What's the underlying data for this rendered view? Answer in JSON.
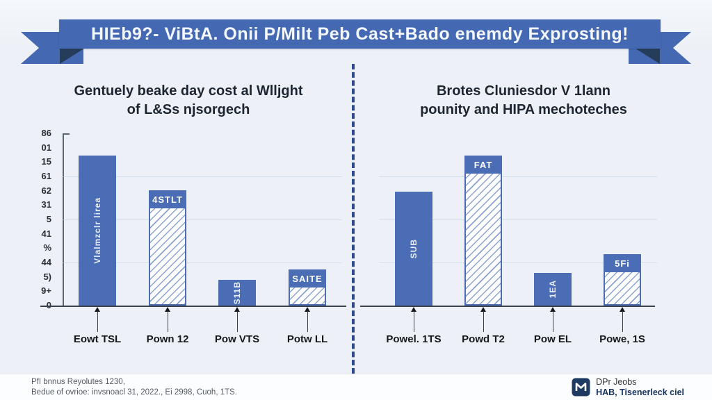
{
  "ribbon": {
    "title": "HIEb9?- ViBtA. Onii P/Milt Peb Cast+Bado enemdy Exprosting!"
  },
  "chart_data": [
    {
      "type": "bar",
      "title_line1": "Gentuely beake day cost al Wlljght",
      "title_line2": "of L&Ss njsorgech",
      "categories": [
        "Eowt TSL",
        "Pown 12",
        "Pow VTS",
        "Potw LL"
      ],
      "values": [
        87,
        67,
        15,
        21
      ],
      "bar_labels": [
        "Vlalmzclr lirea",
        "4STLT",
        "S11B",
        "SAITE"
      ],
      "bar_styles": [
        "solid",
        "hatched",
        "solid",
        "hatched"
      ],
      "y_tick_labels": [
        "86",
        "01",
        "15",
        "61",
        "62",
        "31",
        "5",
        "41",
        "%",
        "44",
        "5)",
        "9+",
        "0"
      ],
      "ylim": [
        0,
        100
      ],
      "grid": true,
      "legend": "none"
    },
    {
      "type": "bar",
      "title_line1": "Brotes Cluniesdor V 1lann",
      "title_line2": "pounity and HIPA mechoteches",
      "categories": [
        "Powel. 1TS",
        "Powd T2",
        "Pow EL",
        "Powe, 1S"
      ],
      "values": [
        66,
        87,
        19,
        30
      ],
      "bar_labels": [
        "SUB",
        "FAT",
        "1EA",
        "5Fi"
      ],
      "bar_styles": [
        "solid",
        "hatched",
        "solid",
        "hatched"
      ],
      "y_tick_labels": [],
      "ylim": [
        0,
        100
      ],
      "grid": true,
      "legend": "none"
    }
  ],
  "footer": {
    "note_line1": "PfI bnnus Reyolutes 1230,",
    "note_line2": "Bedue of ovrioe: invsnoacl 31, 2022., Ei 2998, Cuoh, 1TS.",
    "brand_line1": "DPr Jeobs",
    "brand_line2": "HAB, Tisenerleck ciel"
  },
  "colors": {
    "accent": "#4a6db6",
    "ribbon": "#4468b2",
    "ribbon_fold": "#253c5a",
    "divider": "#2d4a8f",
    "background": "#edf1f7",
    "logo": "#1d3a63"
  }
}
